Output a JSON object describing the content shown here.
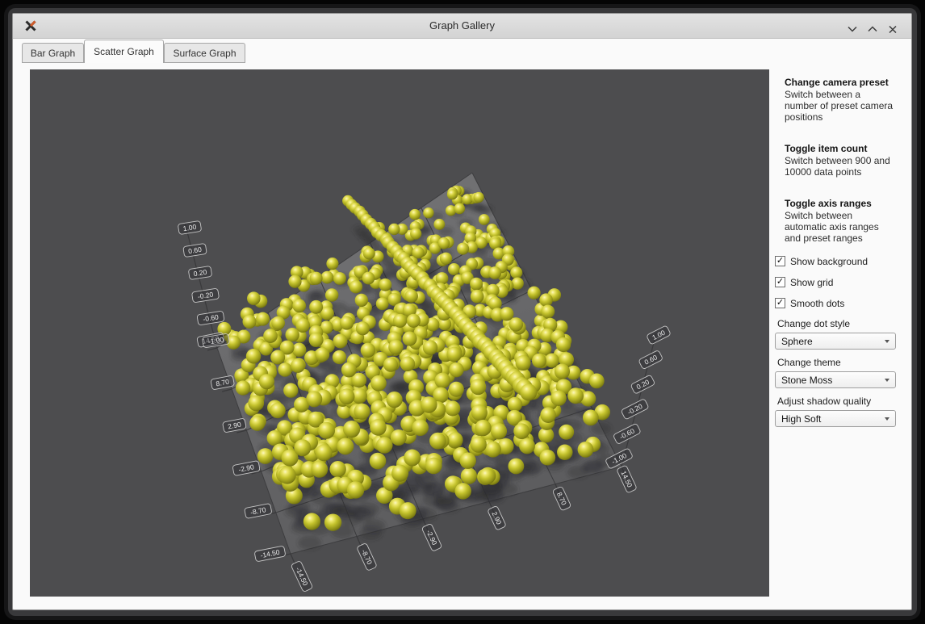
{
  "window": {
    "title": "Graph Gallery"
  },
  "icons": {
    "app": "x-logo",
    "minimize": "chevron-down",
    "maximize": "chevron-up",
    "close": "close-x",
    "check": "✓",
    "dropdown_arrow": "triangle-down"
  },
  "tabs": [
    {
      "label": "Bar Graph",
      "active": false
    },
    {
      "label": "Scatter Graph",
      "active": true
    },
    {
      "label": "Surface Graph",
      "active": false
    }
  ],
  "chart": {
    "type": "3d-scatter",
    "axes": {
      "x": {
        "labels": [
          "-14.50",
          "-8.70",
          "-2.90",
          "2.90",
          "8.70",
          "14.50"
        ]
      },
      "y": {
        "labels": [
          "1.00",
          "0.60",
          "0.20",
          "-0.20",
          "-0.60",
          "-1.00"
        ]
      },
      "z": {
        "labels": [
          "14.50",
          "8.70",
          "2.90",
          "-2.90",
          "-8.70",
          "-14.50"
        ]
      }
    },
    "style": {
      "background": "#4d4d4f",
      "floor_top": "#757577",
      "floor_bottom": "#5b5b5d",
      "grid_line": "#3d3d3f",
      "edge_line": "#39393b",
      "label_text": "#ececec",
      "label_border": "#c6c6c6",
      "label_fill": "rgba(40,40,44,0.4)",
      "point_highlight": "#fbf7c0",
      "point_mid": "#c3c22c",
      "point_dark": "#63630c",
      "shadow": "#2a2a2e"
    },
    "render": {
      "seed": 1337,
      "cloud_points": 620,
      "line_points": 50
    }
  },
  "sidebar": {
    "sections": [
      {
        "title": "Change camera preset",
        "body": "Switch between a number of preset camera positions"
      },
      {
        "title": "Toggle item count",
        "body": "Switch between 900 and 10000 data points"
      },
      {
        "title": "Toggle axis ranges",
        "body": "Switch between automatic axis ranges and preset ranges"
      }
    ],
    "checkboxes": [
      {
        "label": "Show background",
        "checked": true
      },
      {
        "label": "Show grid",
        "checked": true
      },
      {
        "label": "Smooth dots",
        "checked": true
      }
    ],
    "dropdowns": [
      {
        "label": "Change dot style",
        "value": "Sphere"
      },
      {
        "label": "Change theme",
        "value": "Stone Moss"
      },
      {
        "label": "Adjust shadow quality",
        "value": "High Soft"
      }
    ]
  }
}
